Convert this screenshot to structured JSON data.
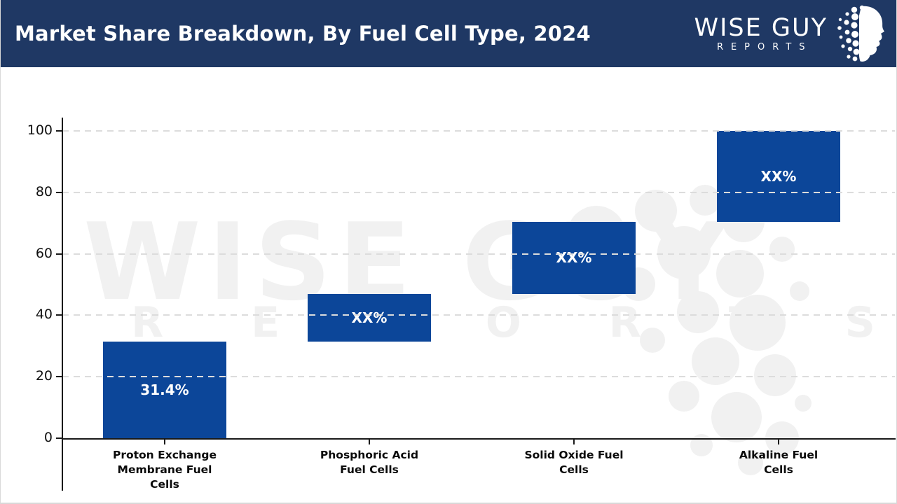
{
  "header": {
    "title": "Market Share Breakdown, By Fuel Cell Type, 2024",
    "logo": {
      "line1": "WISE GUY",
      "line2": "REPORTS"
    }
  },
  "watermark": {
    "line1": "WISE GUY",
    "line2": "R E P O R T S"
  },
  "colors": {
    "header_bg": "#1f3864",
    "bar": "#0c4699",
    "grid": "#dcdcdc",
    "watermark": "#f1f1f1"
  },
  "chart_data": {
    "type": "bar",
    "subtype": "waterfall-floating-bars",
    "title": "Market Share Breakdown, By Fuel Cell Type, 2024",
    "categories": [
      "Proton Exchange\nMembrane Fuel\nCells",
      "Phosphoric Acid\nFuel Cells",
      "Solid Oxide Fuel\nCells",
      "Alkaline Fuel\nCells"
    ],
    "segments": [
      [
        0,
        31.4
      ],
      [
        31.4,
        47
      ],
      [
        47,
        70.5
      ],
      [
        70.5,
        100
      ]
    ],
    "bar_labels": [
      "31.4%",
      "XX%",
      "XX%",
      "XX%"
    ],
    "yticks": [
      0,
      20,
      40,
      60,
      80,
      100
    ],
    "ylim": [
      0,
      104
    ],
    "xlabel": "",
    "ylabel": "",
    "grid": true,
    "legend": false,
    "bar_color": "#0c4699",
    "grid_color": "#dcdcdc"
  }
}
